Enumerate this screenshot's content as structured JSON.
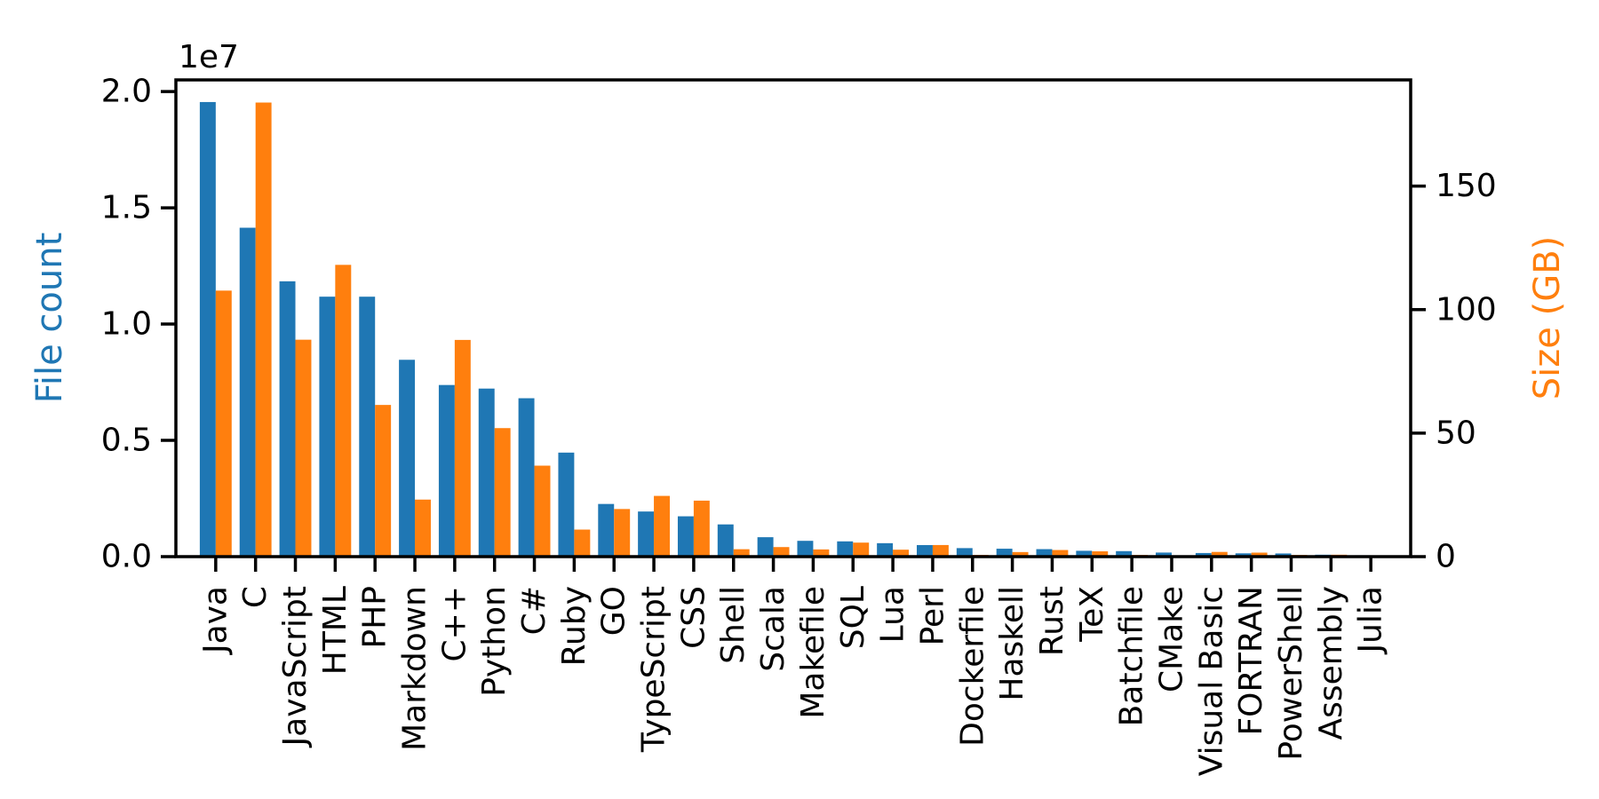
{
  "figure": {
    "background": "#ffffff"
  },
  "chart_data": {
    "type": "bar",
    "title": "",
    "grid": false,
    "legend": "none",
    "bar_width_fraction": 0.4,
    "categories": [
      "Java",
      "C",
      "JavaScript",
      "HTML",
      "PHP",
      "Markdown",
      "C++",
      "Python",
      "C#",
      "Ruby",
      "GO",
      "TypeScript",
      "CSS",
      "Shell",
      "Scala",
      "Makefile",
      "SQL",
      "Lua",
      "Perl",
      "Dockerfile",
      "Haskell",
      "Rust",
      "TeX",
      "Batchfile",
      "CMake",
      "Visual Basic",
      "FORTRAN",
      "PowerShell",
      "Assembly",
      "Julia"
    ],
    "series": [
      {
        "name": "File count",
        "axis": "left",
        "color": "#1f77b4",
        "values": [
          19548190,
          14143113,
          11839883,
          11178557,
          11177610,
          8464626,
          7380520,
          7226626,
          6811652,
          4473331,
          2265436,
          1940406,
          1734406,
          1385648,
          835755,
          679430,
          656671,
          578554,
          497949,
          366505,
          340380,
          322431,
          251015,
          236945,
          175282,
          155652,
          142038,
          136846,
          82905,
          58317
        ]
      },
      {
        "name": "Size (GB)",
        "axis": "right",
        "color": "#ff7f0e",
        "values": [
          107.7,
          183.83,
          87.82,
          118.12,
          61.41,
          23.09,
          87.73,
          52.03,
          36.83,
          10.95,
          19.28,
          24.59,
          22.67,
          3.01,
          3.87,
          2.92,
          5.67,
          2.81,
          4.7,
          0.71,
          1.85,
          2.68,
          2.15,
          0.7,
          0.54,
          1.91,
          1.62,
          0.69,
          0.78,
          0.29
        ]
      }
    ],
    "left_axis": {
      "label": "File count",
      "color": "#1f77b4",
      "offset_text": "1e7",
      "tick_values": [
        0,
        5000000,
        10000000,
        15000000,
        20000000
      ],
      "tick_labels": [
        "0.0",
        "0.5",
        "1.0",
        "1.5",
        "2.0"
      ],
      "range": [
        0,
        20500000
      ]
    },
    "right_axis": {
      "label": "Size (GB)",
      "color": "#ff7f0e",
      "tick_values": [
        0,
        50,
        100,
        150
      ],
      "tick_labels": [
        "0",
        "50",
        "100",
        "150"
      ],
      "range": [
        0,
        193
      ]
    },
    "x_axis": {
      "tick_label_rotation_deg": 90
    }
  }
}
